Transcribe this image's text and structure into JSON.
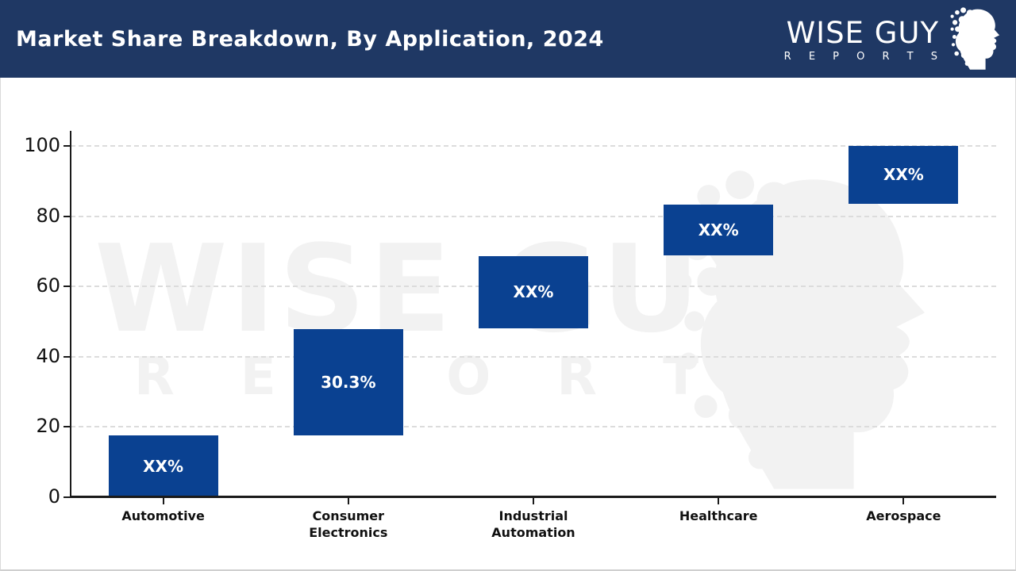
{
  "header": {
    "title": "Market Share Breakdown, By Application, 2024",
    "logo": {
      "name_line": "WISE GUY",
      "reports_line": "R E P O R T S"
    }
  },
  "watermark": {
    "line1": "WISE GUY",
    "line2": "R E P O R T S"
  },
  "chart_data": {
    "type": "bar",
    "variant": "floating-waterfall",
    "title": "Market Share Breakdown, By Application, 2024",
    "categories": [
      [
        "Automotive"
      ],
      [
        "Consumer",
        "Electronics"
      ],
      [
        "Industrial",
        "Automation"
      ],
      [
        "Healthcare"
      ],
      [
        "Aerospace"
      ]
    ],
    "segments": [
      {
        "category": "Automotive",
        "start": 0,
        "end": 17.6,
        "label": "XX%"
      },
      {
        "category": "Consumer Electronics",
        "start": 17.6,
        "end": 47.9,
        "label": "30.3%"
      },
      {
        "category": "Industrial Automation",
        "start": 48.1,
        "end": 68.7,
        "label": "XX%"
      },
      {
        "category": "Healthcare",
        "start": 68.9,
        "end": 83.4,
        "label": "XX%"
      },
      {
        "category": "Aerospace",
        "start": 83.6,
        "end": 100,
        "label": "XX%"
      }
    ],
    "xlabel": "",
    "ylabel": "",
    "ylim": [
      0,
      100
    ],
    "yticks": [
      0,
      20,
      40,
      60,
      80,
      100
    ],
    "grid": "horizontal-dashed",
    "legend": null,
    "colors": {
      "bar": "#0a4191",
      "bar_label": "#ffffff",
      "header_bg": "#1f3864",
      "axis": "#1a1a1a",
      "gridline": "#dcdcdc",
      "watermark": "#f2f2f2"
    }
  }
}
